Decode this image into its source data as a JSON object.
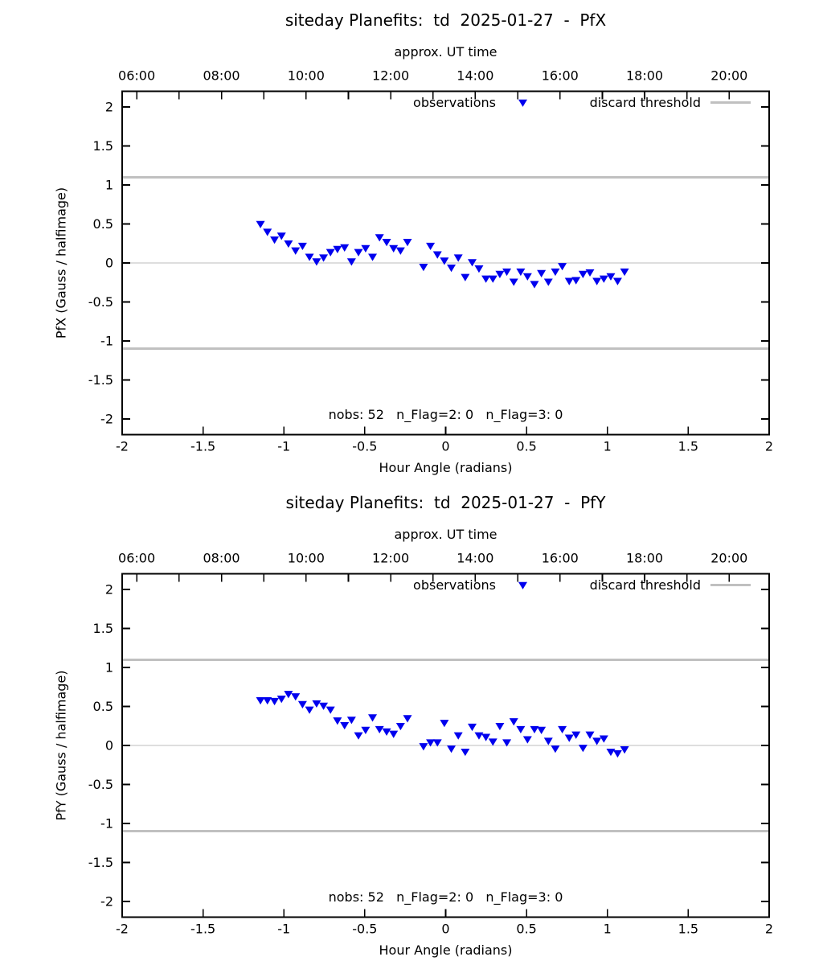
{
  "colors": {
    "points": "#0000ee",
    "threshold": "#c0c0c0",
    "zero_line": "#bdbdbd",
    "border": "#000000",
    "background": "#ffffff"
  },
  "chart_data": [
    {
      "type": "scatter",
      "title": "siteday Planefits:  td  2025-01-27  -  PfX",
      "xlabel": "Hour Angle (radians)",
      "ylabel": "PfX (Gauss / halfimage)",
      "annotation": "nobs: 52   n_Flag=2: 0   n_Flag=3: 0",
      "xlim": [
        -2,
        2
      ],
      "ylim": [
        -2.2,
        2.2
      ],
      "x_ticks": {
        "values": [
          -2,
          -1.5,
          -1,
          -0.5,
          0,
          0.5,
          1,
          1.5,
          2
        ],
        "labels": [
          "-2",
          "-1.5",
          "-1",
          "-0.5",
          "0",
          "0.5",
          "1",
          "1.5",
          "2"
        ]
      },
      "y_ticks": {
        "values": [
          2,
          1.5,
          1,
          0.5,
          0,
          -0.5,
          -1,
          -1.5,
          -2
        ],
        "labels": [
          "2",
          "1.5",
          "1",
          "0.5",
          "0",
          "-0.5",
          "-1",
          "-1.5",
          "-2"
        ]
      },
      "x2_axis": {
        "label": "approx. UT time",
        "tick_positions": [
          -1.91,
          -1.648,
          -1.386,
          -1.124,
          -0.863,
          -0.601,
          -0.34,
          -0.078,
          0.183,
          0.445,
          0.707,
          0.969,
          1.23,
          1.492,
          1.753
        ],
        "tick_labels": [
          "06:00",
          "08:00",
          "10:00",
          "12:00",
          "14:00",
          "16:00",
          "18:00",
          "20:00"
        ],
        "tick_label_positions": [
          -1.91,
          -1.386,
          -0.863,
          -0.34,
          0.183,
          0.707,
          1.23,
          1.753
        ]
      },
      "zero_line": true,
      "threshold_values": [
        1.1,
        -1.1
      ],
      "legend": [
        {
          "label": "observations",
          "marker": "triangle-down",
          "color": "#0000ee"
        },
        {
          "label": "discard threshold",
          "marker": "line",
          "color": "#c0c0c0"
        }
      ],
      "series": [
        {
          "name": "observations",
          "x": [
            -1.145,
            -1.102,
            -1.058,
            -1.015,
            -0.972,
            -0.928,
            -0.885,
            -0.842,
            -0.798,
            -0.755,
            -0.712,
            -0.669,
            -0.625,
            -0.582,
            -0.539,
            -0.495,
            -0.452,
            -0.409,
            -0.365,
            -0.322,
            -0.279,
            -0.236,
            -0.137,
            -0.094,
            -0.051,
            -0.008,
            0.035,
            0.078,
            0.121,
            0.164,
            0.206,
            0.249,
            0.292,
            0.335,
            0.378,
            0.421,
            0.464,
            0.506,
            0.549,
            0.592,
            0.635,
            0.678,
            0.721,
            0.764,
            0.806,
            0.849,
            0.892,
            0.935,
            0.978,
            1.021,
            1.063,
            1.106
          ],
          "y": [
            0.5,
            0.4,
            0.3,
            0.35,
            0.25,
            0.16,
            0.22,
            0.08,
            0.02,
            0.07,
            0.14,
            0.18,
            0.2,
            0.02,
            0.14,
            0.19,
            0.08,
            0.33,
            0.27,
            0.19,
            0.16,
            0.27,
            -0.05,
            0.22,
            0.11,
            0.03,
            -0.06,
            0.07,
            -0.18,
            0.01,
            -0.07,
            -0.2,
            -0.2,
            -0.14,
            -0.11,
            -0.24,
            -0.11,
            -0.17,
            -0.27,
            -0.13,
            -0.24,
            -0.11,
            -0.04,
            -0.23,
            -0.22,
            -0.14,
            -0.12,
            -0.23,
            -0.2,
            -0.17,
            -0.23,
            -0.11
          ]
        }
      ]
    },
    {
      "type": "scatter",
      "title": "siteday Planefits:  td  2025-01-27  -  PfY",
      "xlabel": "Hour Angle (radians)",
      "ylabel": "PfY (Gauss / halfimage)",
      "annotation": "nobs: 52   n_Flag=2: 0   n_Flag=3: 0",
      "xlim": [
        -2,
        2
      ],
      "ylim": [
        -2.2,
        2.2
      ],
      "x_ticks": {
        "values": [
          -2,
          -1.5,
          -1,
          -0.5,
          0,
          0.5,
          1,
          1.5,
          2
        ],
        "labels": [
          "-2",
          "-1.5",
          "-1",
          "-0.5",
          "0",
          "0.5",
          "1",
          "1.5",
          "2"
        ]
      },
      "y_ticks": {
        "values": [
          2,
          1.5,
          1,
          0.5,
          0,
          -0.5,
          -1,
          -1.5,
          -2
        ],
        "labels": [
          "2",
          "1.5",
          "1",
          "0.5",
          "0",
          "-0.5",
          "-1",
          "-1.5",
          "-2"
        ]
      },
      "x2_axis": {
        "label": "approx. UT time",
        "tick_positions": [
          -1.91,
          -1.648,
          -1.386,
          -1.124,
          -0.863,
          -0.601,
          -0.34,
          -0.078,
          0.183,
          0.445,
          0.707,
          0.969,
          1.23,
          1.492,
          1.753
        ],
        "tick_labels": [
          "06:00",
          "08:00",
          "10:00",
          "12:00",
          "14:00",
          "16:00",
          "18:00",
          "20:00"
        ],
        "tick_label_positions": [
          -1.91,
          -1.386,
          -0.863,
          -0.34,
          0.183,
          0.707,
          1.23,
          1.753
        ]
      },
      "zero_line": true,
      "threshold_values": [
        1.1,
        -1.1
      ],
      "legend": [
        {
          "label": "observations",
          "marker": "triangle-down",
          "color": "#0000ee"
        },
        {
          "label": "discard threshold",
          "marker": "line",
          "color": "#c0c0c0"
        }
      ],
      "series": [
        {
          "name": "observations",
          "x": [
            -1.145,
            -1.102,
            -1.058,
            -1.015,
            -0.972,
            -0.928,
            -0.885,
            -0.842,
            -0.798,
            -0.755,
            -0.712,
            -0.669,
            -0.625,
            -0.582,
            -0.539,
            -0.495,
            -0.452,
            -0.409,
            -0.365,
            -0.322,
            -0.279,
            -0.236,
            -0.137,
            -0.094,
            -0.051,
            -0.008,
            0.035,
            0.078,
            0.121,
            0.164,
            0.206,
            0.249,
            0.292,
            0.335,
            0.378,
            0.421,
            0.464,
            0.506,
            0.549,
            0.592,
            0.635,
            0.678,
            0.721,
            0.764,
            0.806,
            0.849,
            0.892,
            0.935,
            0.978,
            1.021,
            1.063,
            1.106
          ],
          "y": [
            0.58,
            0.58,
            0.57,
            0.6,
            0.66,
            0.63,
            0.53,
            0.46,
            0.54,
            0.51,
            0.46,
            0.32,
            0.26,
            0.33,
            0.13,
            0.2,
            0.36,
            0.21,
            0.18,
            0.15,
            0.25,
            0.35,
            -0.01,
            0.04,
            0.04,
            0.29,
            -0.04,
            0.13,
            -0.08,
            0.24,
            0.13,
            0.11,
            0.05,
            0.25,
            0.04,
            0.31,
            0.21,
            0.08,
            0.21,
            0.2,
            0.06,
            -0.04,
            0.21,
            0.1,
            0.14,
            -0.03,
            0.14,
            0.06,
            0.09,
            -0.08,
            -0.1,
            -0.05
          ]
        }
      ]
    }
  ]
}
